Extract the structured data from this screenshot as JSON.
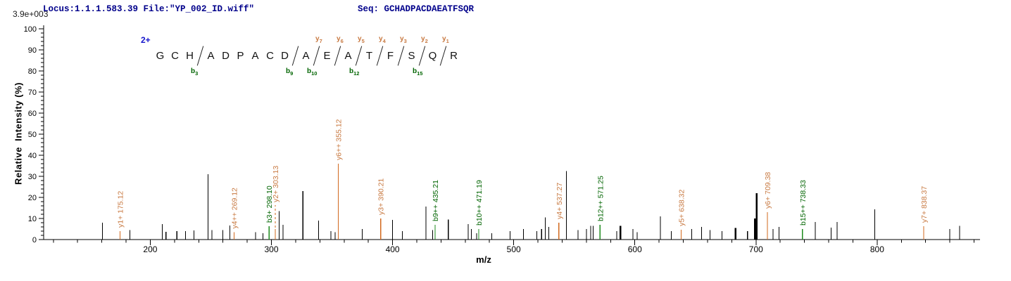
{
  "header": {
    "intensity_scale": "3.9e+003",
    "locus_line": "Locus:1.1.1.583.39 File:\"YP_002_ID.wiff\"",
    "seq_line": "Seq: GCHADPACDAEATFSQR"
  },
  "sequence": {
    "charge_label": "2+",
    "residues": [
      "G",
      "C",
      "H",
      "A",
      "D",
      "P",
      "A",
      "C",
      "D",
      "A",
      "E",
      "A",
      "T",
      "F",
      "S",
      "Q",
      "R"
    ],
    "cuts": [
      {
        "after": 3,
        "b": "b3"
      },
      {
        "after": 9,
        "b": "b9"
      },
      {
        "after": 10,
        "y": "y7",
        "b": "b10"
      },
      {
        "after": 11,
        "y": "y6"
      },
      {
        "after": 12,
        "y": "y5",
        "b": "b12"
      },
      {
        "after": 13,
        "y": "y4"
      },
      {
        "after": 14,
        "y": "y3"
      },
      {
        "after": 15,
        "y": "y2",
        "b": "b15"
      },
      {
        "after": 16,
        "y": "y1"
      }
    ]
  },
  "axes": {
    "x_label": "m/z",
    "y_label": "Relative  Intensity (%)",
    "x_min": 112,
    "x_max": 882,
    "x_major_ticks": [
      200,
      300,
      400,
      500,
      600,
      700,
      800
    ],
    "x_minor_step": 20,
    "y_min": 0,
    "y_max": 100,
    "y_major_ticks": [
      0,
      10,
      20,
      30,
      40,
      50,
      60,
      70,
      80,
      90,
      100
    ],
    "y_minor_step": 2
  },
  "colors": {
    "axis": "#000000",
    "black_peak": "#000000",
    "y_ion_line": "#D2691E",
    "y_ion_text": "#C87941",
    "b_ion_line": "#1E8B1E",
    "b_ion_text": "#006400",
    "header_text": "#00008B",
    "charge_text": "#1414CC"
  },
  "chart_data": {
    "type": "bar",
    "title": "MS/MS fragment spectrum",
    "xlabel": "m/z",
    "ylabel": "Relative  Intensity (%)",
    "xlim": [
      112,
      882
    ],
    "ylim": [
      0,
      100
    ],
    "peaks": [
      {
        "mz": 160.5,
        "intensity": 8
      },
      {
        "mz": 175.12,
        "intensity": 4,
        "ion": "y",
        "label": "y1+ 175.12"
      },
      {
        "mz": 183.2,
        "intensity": 4.5
      },
      {
        "mz": 210.0,
        "intensity": 7.3
      },
      {
        "mz": 213.0,
        "intensity": 3.7
      },
      {
        "mz": 222.0,
        "intensity": 4
      },
      {
        "mz": 229.0,
        "intensity": 4
      },
      {
        "mz": 236.0,
        "intensity": 4.3
      },
      {
        "mz": 247.6,
        "intensity": 31
      },
      {
        "mz": 251.0,
        "intensity": 4.5
      },
      {
        "mz": 259.8,
        "intensity": 4.5
      },
      {
        "mz": 265.6,
        "intensity": 6.7
      },
      {
        "mz": 269.12,
        "intensity": 3.5,
        "ion": "y",
        "label": "y4++ 269.12"
      },
      {
        "mz": 287.0,
        "intensity": 3.5
      },
      {
        "mz": 293.0,
        "intensity": 3
      },
      {
        "mz": 298.1,
        "intensity": 6.3,
        "ion": "b",
        "label": "b3+ 298.10"
      },
      {
        "mz": 303.13,
        "intensity": 5,
        "ion": "y",
        "label": "y2+ 303.13",
        "leader": true
      },
      {
        "mz": 306.5,
        "intensity": 13.5
      },
      {
        "mz": 309.5,
        "intensity": 7
      },
      {
        "mz": 326.0,
        "intensity": 23
      },
      {
        "mz": 339.0,
        "intensity": 9
      },
      {
        "mz": 349.0,
        "intensity": 4
      },
      {
        "mz": 352.5,
        "intensity": 3.5
      },
      {
        "mz": 355.12,
        "intensity": 36,
        "ion": "y",
        "label": "y6++ 355.12"
      },
      {
        "mz": 375.0,
        "intensity": 5
      },
      {
        "mz": 390.21,
        "intensity": 10,
        "ion": "y",
        "label": "y3+ 390.21"
      },
      {
        "mz": 400.0,
        "intensity": 9.3
      },
      {
        "mz": 408.0,
        "intensity": 4
      },
      {
        "mz": 427.5,
        "intensity": 15.7
      },
      {
        "mz": 433.0,
        "intensity": 4.5
      },
      {
        "mz": 435.21,
        "intensity": 7,
        "ion": "b",
        "label": "b9++ 435.21"
      },
      {
        "mz": 446.0,
        "intensity": 9.5
      },
      {
        "mz": 462.5,
        "intensity": 7.3
      },
      {
        "mz": 465.0,
        "intensity": 5
      },
      {
        "mz": 469.5,
        "intensity": 3
      },
      {
        "mz": 471.19,
        "intensity": 5,
        "ion": "b",
        "label": "b10++ 471.19"
      },
      {
        "mz": 482.0,
        "intensity": 3
      },
      {
        "mz": 497.0,
        "intensity": 4
      },
      {
        "mz": 508.0,
        "intensity": 5
      },
      {
        "mz": 519.0,
        "intensity": 4
      },
      {
        "mz": 523.0,
        "intensity": 5
      },
      {
        "mz": 526.0,
        "intensity": 10.5
      },
      {
        "mz": 529.0,
        "intensity": 6
      },
      {
        "mz": 537.27,
        "intensity": 8,
        "ion": "y",
        "label": "y4+ 537.27"
      },
      {
        "mz": 543.5,
        "intensity": 32.5
      },
      {
        "mz": 553.0,
        "intensity": 4.5
      },
      {
        "mz": 560.0,
        "intensity": 5
      },
      {
        "mz": 563.5,
        "intensity": 6.5
      },
      {
        "mz": 565.5,
        "intensity": 6.5
      },
      {
        "mz": 571.25,
        "intensity": 7,
        "ion": "b",
        "label": "b12++ 571.25"
      },
      {
        "mz": 585.0,
        "intensity": 4
      },
      {
        "mz": 588.0,
        "intensity": 6.5,
        "bold": true
      },
      {
        "mz": 598.5,
        "intensity": 5
      },
      {
        "mz": 602.0,
        "intensity": 3.5
      },
      {
        "mz": 621.0,
        "intensity": 11
      },
      {
        "mz": 630.0,
        "intensity": 4
      },
      {
        "mz": 638.32,
        "intensity": 4.7,
        "ion": "y",
        "label": "y5+ 638.32"
      },
      {
        "mz": 647.0,
        "intensity": 5
      },
      {
        "mz": 655.0,
        "intensity": 6
      },
      {
        "mz": 662.0,
        "intensity": 4.5
      },
      {
        "mz": 672.0,
        "intensity": 4
      },
      {
        "mz": 683.0,
        "intensity": 5.5,
        "bold": true
      },
      {
        "mz": 693.0,
        "intensity": 4
      },
      {
        "mz": 699.0,
        "intensity": 10,
        "bold": true
      },
      {
        "mz": 700.6,
        "intensity": 22,
        "bold": true
      },
      {
        "mz": 709.38,
        "intensity": 13,
        "ion": "y",
        "label": "y6+ 709.38"
      },
      {
        "mz": 714.0,
        "intensity": 5
      },
      {
        "mz": 719.0,
        "intensity": 6
      },
      {
        "mz": 738.33,
        "intensity": 5,
        "ion": "b",
        "label": "b15++ 738.33"
      },
      {
        "mz": 749.0,
        "intensity": 8.3
      },
      {
        "mz": 762.0,
        "intensity": 5.7
      },
      {
        "mz": 767.0,
        "intensity": 8.3
      },
      {
        "mz": 798.0,
        "intensity": 14.3
      },
      {
        "mz": 838.37,
        "intensity": 6.3,
        "ion": "y",
        "label": "y7+ 838.37"
      },
      {
        "mz": 860.0,
        "intensity": 5
      },
      {
        "mz": 868.0,
        "intensity": 6.5
      }
    ]
  }
}
